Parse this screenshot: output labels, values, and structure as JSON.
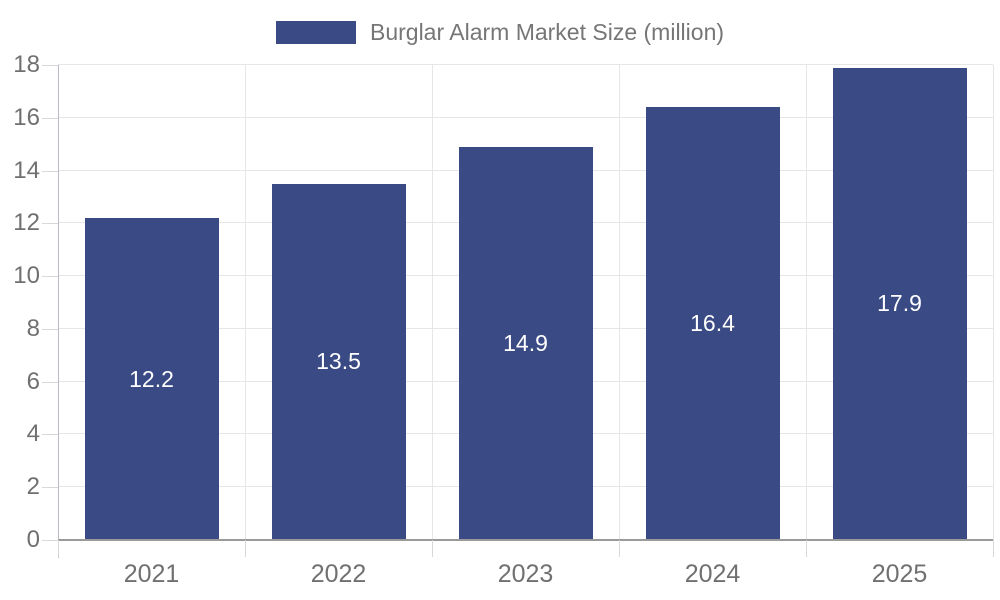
{
  "legend": {
    "label": "Burglar Alarm Market Size (million)"
  },
  "colors": {
    "bar": "#3A4A84",
    "value_label": "#ffffff",
    "legend_text": "#767676",
    "axis_text": "#707070",
    "grid": "#e6e6e6",
    "axis_line_x": "#9a9a9a",
    "axis_line_y": "#b7bcc7",
    "tick": "#d8d8d8",
    "background": "#ffffff"
  },
  "chart_data": {
    "type": "bar",
    "categories": [
      "2021",
      "2022",
      "2023",
      "2024",
      "2025"
    ],
    "values": [
      12.2,
      13.5,
      14.9,
      16.4,
      17.9
    ],
    "title": "Burglar Alarm Market Size (million)",
    "xlabel": "",
    "ylabel": "",
    "ylim": [
      0,
      18
    ],
    "ytick_step": 2,
    "ytick_labels": [
      "0",
      "2",
      "4",
      "6",
      "8",
      "10",
      "12",
      "14",
      "16",
      "18"
    ],
    "grid": true,
    "legend_position": "top-center",
    "value_label_position": "inside-center",
    "bar_color": "#3A4A84"
  }
}
